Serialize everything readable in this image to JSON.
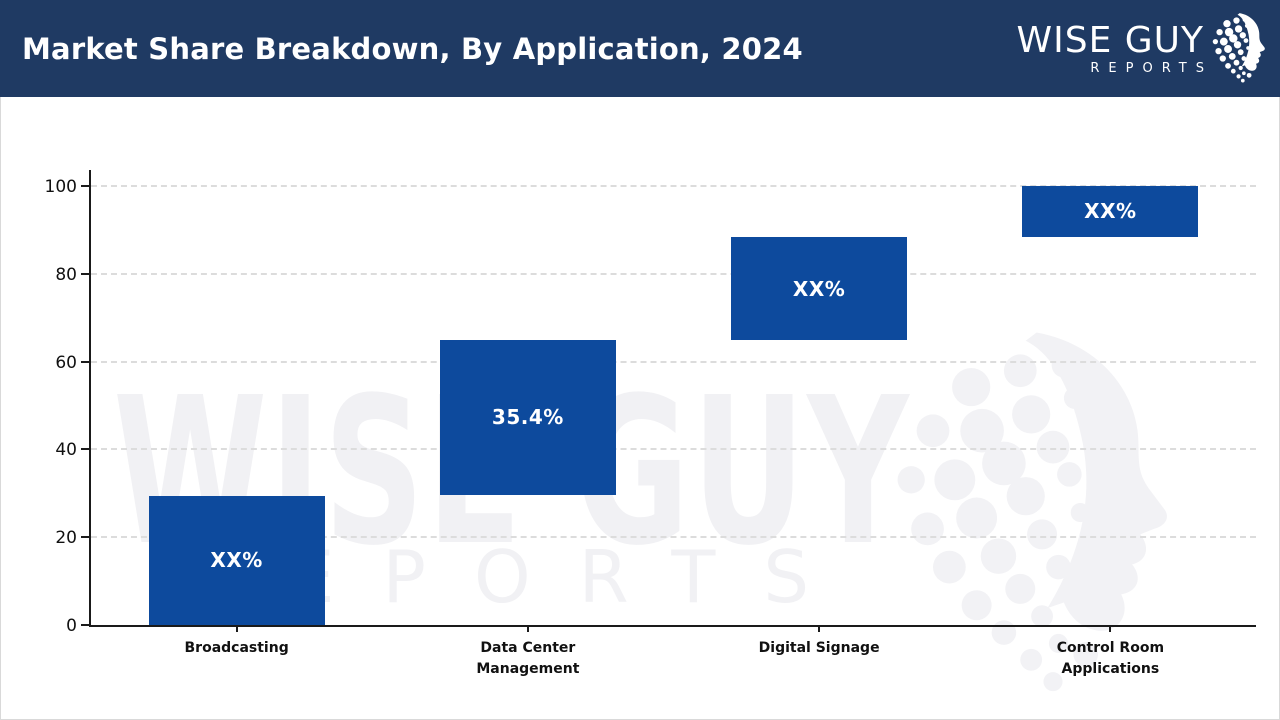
{
  "header": {
    "title": "Market Share Breakdown, By Application, 2024",
    "bg_color": "#1F3A63",
    "logo": {
      "primary": "WISE GUY",
      "secondary": "REPORTS"
    }
  },
  "watermark": {
    "primary": "WISE GUY",
    "secondary": "REPORTS"
  },
  "chart_data": {
    "type": "bar",
    "subtype": "waterfall-floating-bars",
    "title": "Market Share Breakdown, By Application, 2024",
    "categories": [
      "Broadcasting",
      "Data Center\nManagement",
      "Digital Signage",
      "Control Room\nApplications"
    ],
    "segments": [
      {
        "category": "Broadcasting",
        "start": 0,
        "end": 29.5,
        "label": "XX%"
      },
      {
        "category": "Data Center Management",
        "start": 29.6,
        "end": 65.0,
        "label": "35.4%"
      },
      {
        "category": "Digital Signage",
        "start": 64.9,
        "end": 88.4,
        "label": "XX%"
      },
      {
        "category": "Control Room Applications",
        "start": 88.5,
        "end": 100,
        "label": "XX%"
      }
    ],
    "xlabel": "",
    "ylabel": "",
    "ylim": [
      0,
      100
    ],
    "yticks": [
      0,
      20,
      40,
      60,
      80,
      100
    ],
    "grid": "horizontal-dashed",
    "legend": "none",
    "bar_color": "#0D4A9D",
    "bar_label_color": "#ffffff"
  }
}
